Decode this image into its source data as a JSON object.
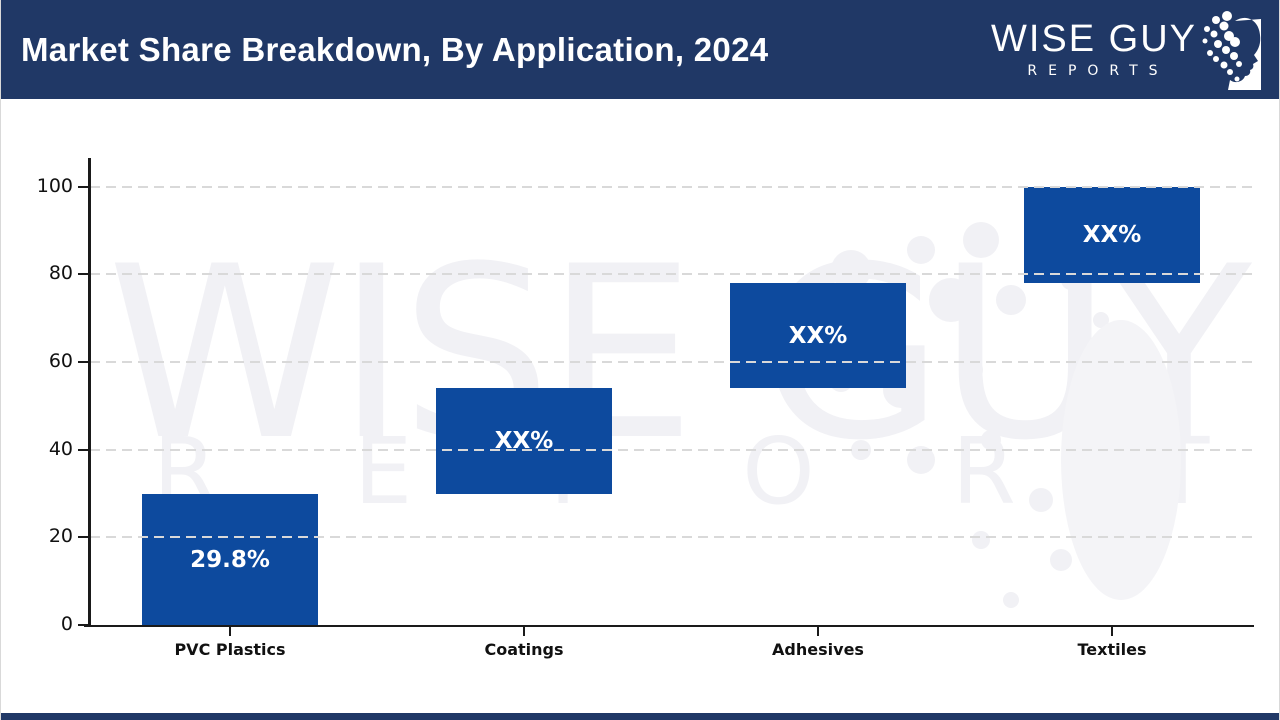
{
  "header": {
    "title": "Market Share Breakdown, By Application, 2024",
    "logo": {
      "primary": "WISE GUY",
      "secondary": "REPORTS"
    }
  },
  "watermark": {
    "primary": "WISE GUY",
    "secondary": "R E P O R T S"
  },
  "chart_data": {
    "type": "bar",
    "subtype": "floating_waterfall",
    "title": "Market Share Breakdown, By Application, 2024",
    "categories": [
      "PVC Plastics",
      "Coatings",
      "Adhesives",
      "Textiles"
    ],
    "series": [
      {
        "name": "Market share (%)",
        "segments": [
          {
            "category": "PVC Plastics",
            "start": 0,
            "end": 29.8,
            "label": "29.8%"
          },
          {
            "category": "Coatings",
            "start": 29.8,
            "end": 54,
            "label": "XX%"
          },
          {
            "category": "Adhesives",
            "start": 54,
            "end": 78,
            "label": "XX%"
          },
          {
            "category": "Textiles",
            "start": 78,
            "end": 100,
            "label": "XX%"
          }
        ]
      }
    ],
    "xlabel": "",
    "ylabel": "",
    "ylim": [
      0,
      107
    ],
    "yticks": [
      0,
      20,
      40,
      60,
      80,
      100
    ],
    "grid": "horizontal_dashed",
    "legend": "none",
    "bar_color": "#0d4a9e",
    "bar_label_color": "#ffffff",
    "gridline_color": "#d9d9d9",
    "axis_color": "#1a1a1a",
    "tick_label_color": "#111111"
  },
  "colors": {
    "header_bg": "#203866",
    "footer_bg": "#203866",
    "watermark": "#f1f1f5"
  }
}
